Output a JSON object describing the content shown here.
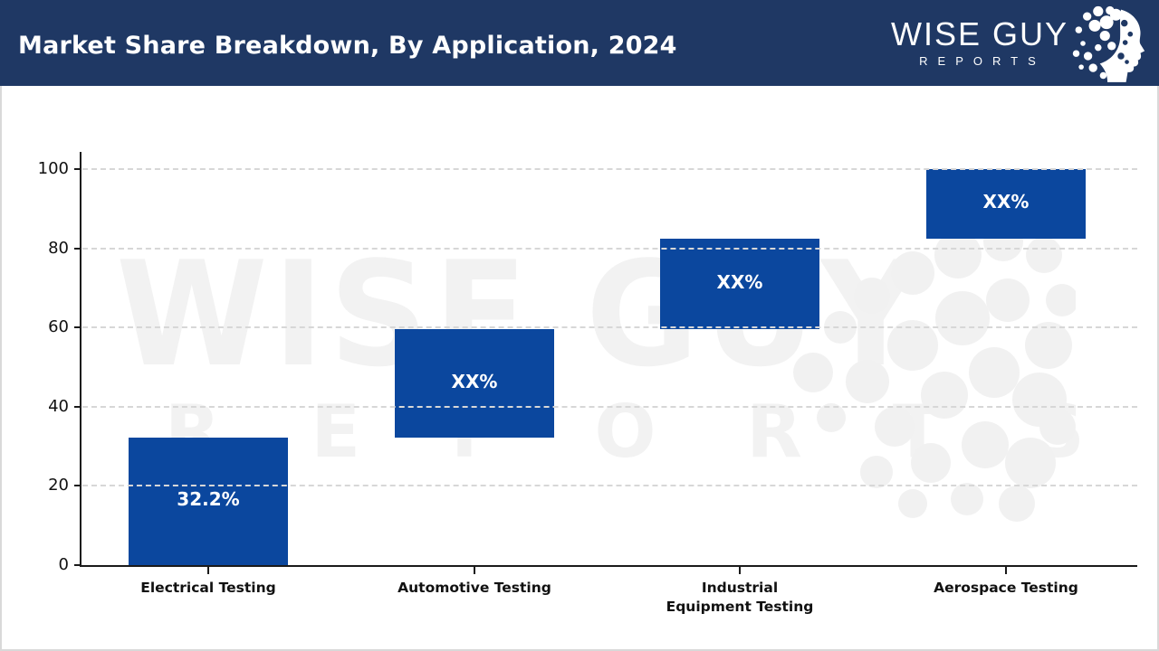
{
  "page": {
    "bg": "#ffffff",
    "border_color": "#d9d9d9"
  },
  "header": {
    "bg_color": "#1f3864",
    "title": "Market Share Breakdown, By Application, 2024",
    "logo": {
      "wordmark": "WISE GUY",
      "subtext": "REPORTS"
    }
  },
  "watermark": {
    "wordmark": "WISE GUY",
    "subtext": "R E P O R T S"
  },
  "chart_data": {
    "type": "bar",
    "subtype": "waterfall",
    "title": "Market Share Breakdown, By Application, 2024",
    "xlabel": "",
    "ylabel": "",
    "ylim": [
      0,
      100
    ],
    "y_ticks": [
      0,
      20,
      40,
      60,
      80,
      100
    ],
    "grid": {
      "horizontal": true,
      "style": "dashed",
      "color": "#d7d7d7"
    },
    "legend": "none",
    "bar_color": "#0b479e",
    "bar_label_color": "#ffffff",
    "categories": [
      "Electrical Testing",
      "Automotive Testing",
      "Industrial Equipment Testing",
      "Aerospace Testing"
    ],
    "category_label_lines": [
      [
        "Electrical Testing"
      ],
      [
        "Automotive Testing"
      ],
      [
        "Industrial",
        "Equipment Testing"
      ],
      [
        "Aerospace Testing"
      ]
    ],
    "segments": [
      {
        "category": "Electrical Testing",
        "start": 0,
        "end": 32.2,
        "label": "32.2%"
      },
      {
        "category": "Automotive Testing",
        "start": 32.2,
        "end": 59.5,
        "label": "XX%"
      },
      {
        "category": "Industrial Equipment Testing",
        "start": 59.5,
        "end": 82.5,
        "label": "XX%"
      },
      {
        "category": "Aerospace Testing",
        "start": 82.5,
        "end": 100,
        "label": "XX%"
      }
    ]
  }
}
